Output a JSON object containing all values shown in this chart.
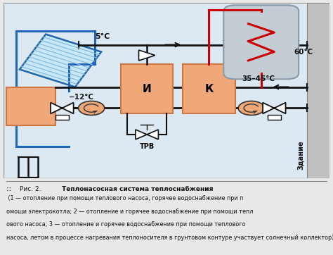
{
  "bg_outer": "#e8e8e8",
  "bg_diagram": "#dce8f2",
  "wall_color": "#b8b8b8",
  "wall_edge": "#999999",
  "box_color": "#f0a878",
  "box_edge": "#cc7744",
  "tank_body_top": "#d0d8e0",
  "tank_body_bot": "#a8b4bc",
  "tank_edge": "#888899",
  "line_black": "#111111",
  "line_red": "#cc0000",
  "line_blue": "#2266bb",
  "solar_fill": "#c8e8f8",
  "solar_edge": "#2266aa",
  "solar_stripe": "#88bbdd",
  "temp_5": "5°C",
  "temp_60": "60°C",
  "temp_m12": "−12°C",
  "temp_3545": "35–45°C",
  "label_trv": "ТРВ",
  "label_zdanie": "Здание",
  "label_i": "И",
  "label_k": "К",
  "caption_bold": "Теплонасосная система теплоснабжения",
  "caption_rest": " (1 — отопление при помощи теплового насоса, горячее водоснабжение при помощи электрокотла; 2 — отопление и горячее водоснабжение при помощи теплового насоса; 3 — отопление и горячее водоснабжение при помощи теплового насоса, летом в процессе нагревания теплоносителя в грунтовом контуре участвует солнечный коллектор)"
}
